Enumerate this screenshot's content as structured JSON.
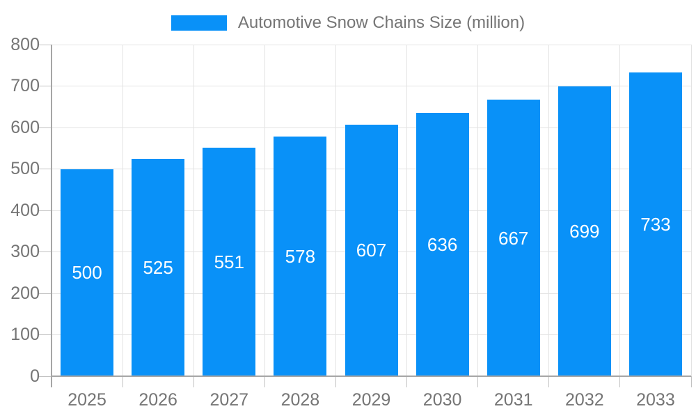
{
  "chart_data": {
    "type": "bar",
    "title": "",
    "legend": "Automotive Snow Chains Size (million)",
    "series_name": "Automotive Snow Chains Size (million)",
    "categories": [
      "2025",
      "2026",
      "2027",
      "2028",
      "2029",
      "2030",
      "2031",
      "2032",
      "2033"
    ],
    "values": [
      500,
      525,
      551,
      578,
      607,
      636,
      667,
      699,
      733
    ],
    "bar_value_labels": [
      "500",
      "525",
      "551",
      "578",
      "607",
      "636",
      "667",
      "699",
      "733"
    ],
    "xlabel": "",
    "ylabel": "",
    "ylim": [
      0,
      800
    ],
    "yticks": [
      0,
      100,
      200,
      300,
      400,
      500,
      600,
      700,
      800
    ],
    "grid": true,
    "legend_position": "top-center",
    "value_label_position": "inside-center"
  },
  "colors": {
    "bar": "#0991f8",
    "bar_label": "#ffffff",
    "legend_swatch": "#0991f8",
    "legend_text": "#757575",
    "axis_label": "#757575",
    "axis_line": "#a6a6a6",
    "tick": "#c2c2c2",
    "grid": "#e3e3e3",
    "background": "#ffffff"
  }
}
